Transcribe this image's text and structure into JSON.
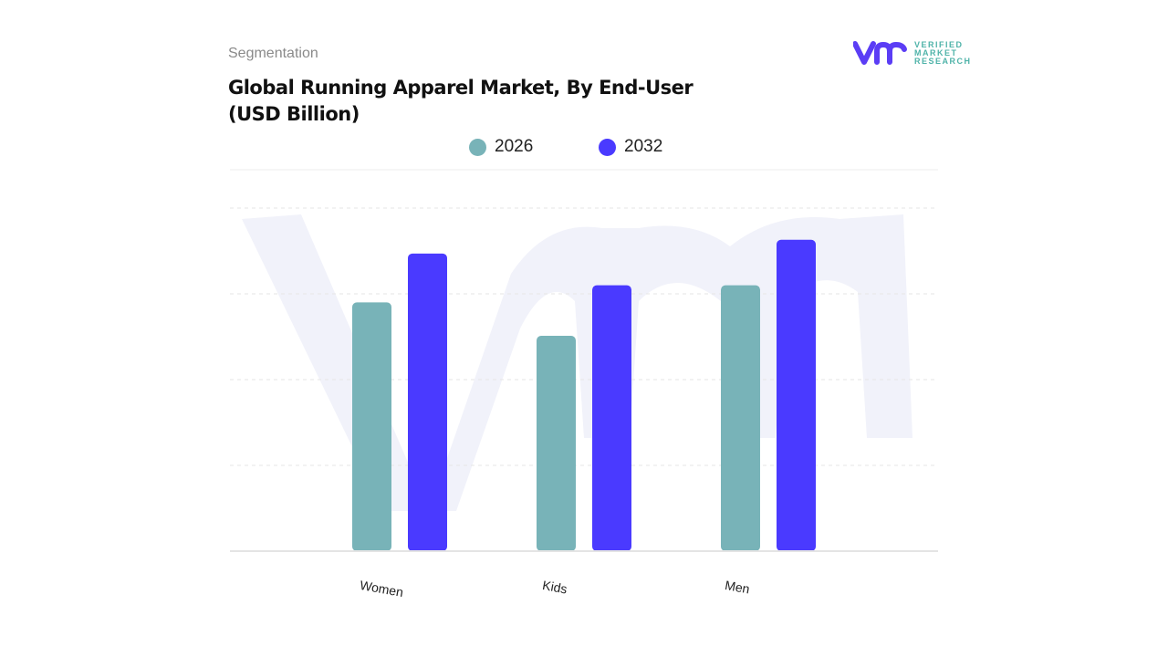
{
  "header": {
    "segment_label": "Segmentation",
    "title_line1": "Global Running Apparel Market, By End-User",
    "title_line2": "(USD Billion)"
  },
  "logo": {
    "mark": "vmr",
    "line1": "VERIFIED",
    "line2": "MARKET",
    "line3": "RESEARCH"
  },
  "chart_data": {
    "type": "bar",
    "title": "Global Running Apparel Market, By End-User (USD Billion)",
    "categories": [
      "Women",
      "Kids",
      "Men"
    ],
    "series": [
      {
        "name": "2026",
        "color": "#78b3b8",
        "values": [
          2.9,
          2.51,
          3.1
        ]
      },
      {
        "name": "2032",
        "color": "#4a3aff",
        "values": [
          3.47,
          3.1,
          3.63
        ]
      }
    ],
    "xlabel": "",
    "ylabel": "",
    "ylim": [
      0,
      4
    ],
    "grid": true,
    "legend": "top-center",
    "note": "values in relative units (no y-axis labels shown)"
  }
}
